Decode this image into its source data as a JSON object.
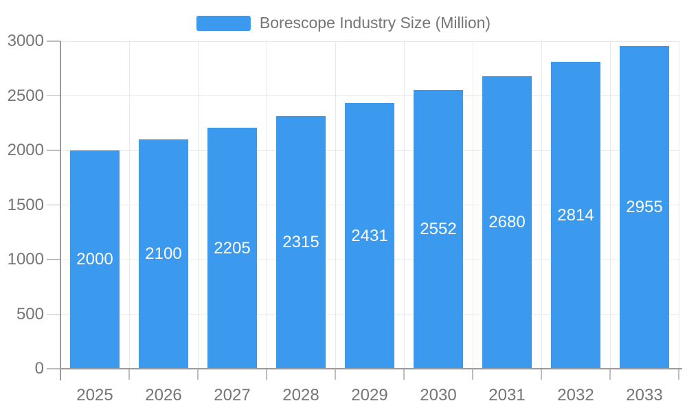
{
  "chart_data": {
    "type": "bar",
    "title": "Borescope Industry Size (Million)",
    "legend": {
      "label": "Borescope Industry Size (Million)",
      "position": "top-center"
    },
    "categories": [
      "2025",
      "2026",
      "2027",
      "2028",
      "2029",
      "2030",
      "2031",
      "2032",
      "2033"
    ],
    "series": [
      {
        "name": "Borescope Industry Size (Million)",
        "values": [
          2000,
          2100,
          2205,
          2315,
          2431,
          2552,
          2680,
          2814,
          2955
        ]
      }
    ],
    "xlabel": "",
    "ylabel": "",
    "ylim": [
      0,
      3000
    ],
    "yticks": [
      0,
      500,
      1000,
      1500,
      2000,
      2500,
      3000
    ],
    "grid": true,
    "value_labels": "inside-center",
    "legend_swatch": "bar-color-swatch",
    "colors": {
      "bar": "#3B99EE",
      "axis": "#9B9B9B",
      "gridline": "#E8E8E8",
      "tick": "#BDBDBD",
      "axis_label": "#757575",
      "value_label": "#FFFFFF",
      "background": "#FFFFFF"
    }
  }
}
